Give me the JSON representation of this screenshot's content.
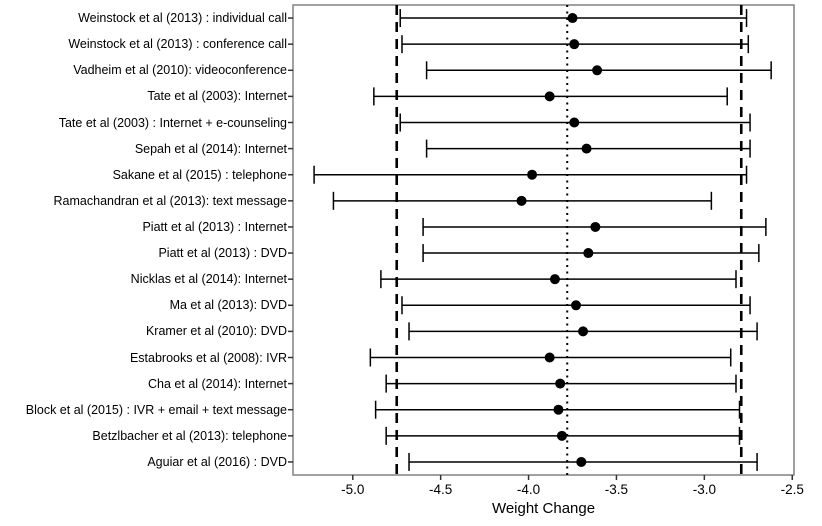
{
  "chart_data": {
    "type": "scatter",
    "subtype": "forest-plot",
    "title": "",
    "xlabel": "Weight Change",
    "ylabel": "",
    "xlim": [
      -5.34,
      -2.49
    ],
    "grid": false,
    "legend": false,
    "x_ticks": [
      {
        "value": -5.0,
        "label": "-5.0"
      },
      {
        "value": -4.5,
        "label": "-4.5"
      },
      {
        "value": -4.0,
        "label": "-4.0"
      },
      {
        "value": -3.5,
        "label": "-3.5"
      },
      {
        "value": -3.0,
        "label": "-3.0"
      },
      {
        "value": -2.5,
        "label": "-2.5"
      }
    ],
    "reference_lines": {
      "pooled_estimate_dotted": -3.78,
      "prediction_interval_dashed": [
        -4.75,
        -2.79
      ]
    },
    "studies": [
      {
        "label": "Weinstock et al (2013) : individual call",
        "mean": -3.75,
        "ci_low": -4.73,
        "ci_high": -2.76
      },
      {
        "label": "Weinstock et al (2013) : conference call",
        "mean": -3.74,
        "ci_low": -4.72,
        "ci_high": -2.75
      },
      {
        "label": "Vadheim et al (2010): videoconference",
        "mean": -3.61,
        "ci_low": -4.58,
        "ci_high": -2.62
      },
      {
        "label": "Tate et al (2003): Internet",
        "mean": -3.88,
        "ci_low": -4.88,
        "ci_high": -2.87
      },
      {
        "label": "Tate et al (2003) : Internet + e-counseling",
        "mean": -3.74,
        "ci_low": -4.73,
        "ci_high": -2.74
      },
      {
        "label": "Sepah et al (2014): Internet",
        "mean": -3.67,
        "ci_low": -4.58,
        "ci_high": -2.74
      },
      {
        "label": "Sakane et al (2015) : telephone",
        "mean": -3.98,
        "ci_low": -5.22,
        "ci_high": -2.76
      },
      {
        "label": "Ramachandran et al (2013): text message",
        "mean": -4.04,
        "ci_low": -5.11,
        "ci_high": -2.96
      },
      {
        "label": "Piatt et al (2013) : Internet",
        "mean": -3.62,
        "ci_low": -4.6,
        "ci_high": -2.65
      },
      {
        "label": "Piatt et al (2013) : DVD",
        "mean": -3.66,
        "ci_low": -4.6,
        "ci_high": -2.69
      },
      {
        "label": "Nicklas et al (2014): Internet",
        "mean": -3.85,
        "ci_low": -4.84,
        "ci_high": -2.82
      },
      {
        "label": "Ma et al (2013): DVD",
        "mean": -3.73,
        "ci_low": -4.72,
        "ci_high": -2.74
      },
      {
        "label": "Kramer et al (2010): DVD",
        "mean": -3.69,
        "ci_low": -4.68,
        "ci_high": -2.7
      },
      {
        "label": "Estabrooks et al (2008): IVR",
        "mean": -3.88,
        "ci_low": -4.9,
        "ci_high": -2.85
      },
      {
        "label": "Cha et al (2014): Internet",
        "mean": -3.82,
        "ci_low": -4.81,
        "ci_high": -2.82
      },
      {
        "label": "Block et al (2015) : IVR + email + text message",
        "mean": -3.83,
        "ci_low": -4.87,
        "ci_high": -2.8
      },
      {
        "label": "Betzlbacher et al (2013): telephone",
        "mean": -3.81,
        "ci_low": -4.81,
        "ci_high": -2.8
      },
      {
        "label": "Aguiar et al (2016) : DVD",
        "mean": -3.7,
        "ci_low": -4.68,
        "ci_high": -2.7
      }
    ],
    "colors": {
      "point": "#000000",
      "ci_line": "#000000",
      "reference_line": "#000000",
      "panel_border": "#808080",
      "text": "#000000",
      "background": "#ffffff"
    }
  }
}
